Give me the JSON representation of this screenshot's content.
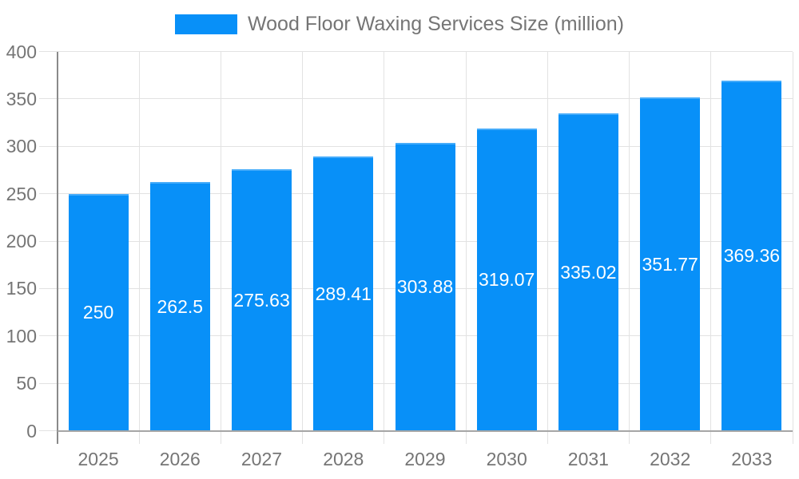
{
  "legend": {
    "label": "Wood Floor Waxing Services Size (million)",
    "swatch_color": "#0890f8"
  },
  "chart_data": {
    "type": "bar",
    "title": "Wood Floor Waxing Services Size (million)",
    "categories": [
      "2025",
      "2026",
      "2027",
      "2028",
      "2029",
      "2030",
      "2031",
      "2032",
      "2033"
    ],
    "values": [
      250,
      262.5,
      275.63,
      289.41,
      303.88,
      319.07,
      335.02,
      351.77,
      369.36
    ],
    "value_labels": [
      "250",
      "262.5",
      "275.63",
      "289.41",
      "303.88",
      "319.07",
      "335.02",
      "351.77",
      "369.36"
    ],
    "xlabel": "",
    "ylabel": "",
    "ylim": [
      0,
      400
    ],
    "ytick_step": 50,
    "ytick_labels": [
      "0",
      "50",
      "100",
      "150",
      "200",
      "250",
      "300",
      "350",
      "400"
    ],
    "grid": true,
    "legend_position": "top",
    "colors": {
      "bar": "#0890f8",
      "value_label": "#ffffff",
      "grid": "#e2e2e2",
      "y_axis_line": "#8a8a8a",
      "x_axis_line": "#a6a6a6",
      "axis_text": "#757575"
    }
  }
}
